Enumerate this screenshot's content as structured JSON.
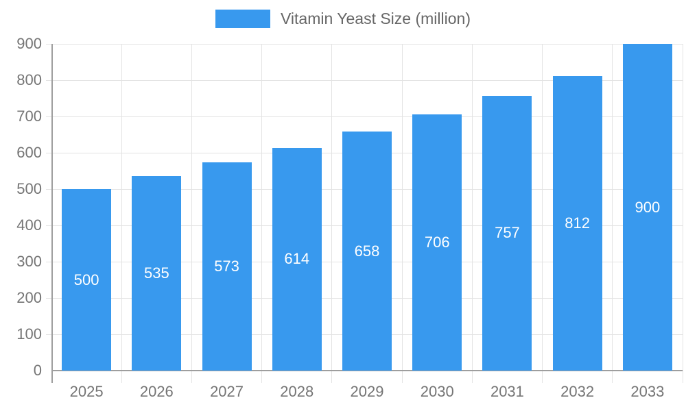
{
  "legend": {
    "label": "Vitamin Yeast Size (million)"
  },
  "chart_data": {
    "type": "bar",
    "title": "Vitamin Yeast Size (million)",
    "xlabel": "",
    "ylabel": "",
    "categories": [
      "2025",
      "2026",
      "2027",
      "2028",
      "2029",
      "2030",
      "2031",
      "2032",
      "2033"
    ],
    "values": [
      500,
      535,
      573,
      614,
      658,
      706,
      757,
      812,
      900
    ],
    "value_labels": [
      "500",
      "535",
      "573",
      "614",
      "658",
      "706",
      "757",
      "812",
      "900"
    ],
    "ylim": [
      0,
      900
    ],
    "ytick_step": 100,
    "ytick_labels": [
      "0",
      "100",
      "200",
      "300",
      "400",
      "500",
      "600",
      "700",
      "800",
      "900"
    ],
    "grid": true,
    "legend_position": "top",
    "colors": {
      "bar": "#3899ee",
      "grid": "#e3e3e3",
      "axis": "#9e9e9e",
      "tick_text": "#757575",
      "legend_text": "#666666",
      "value_label": "#ffffff",
      "background": "#ffffff"
    }
  }
}
